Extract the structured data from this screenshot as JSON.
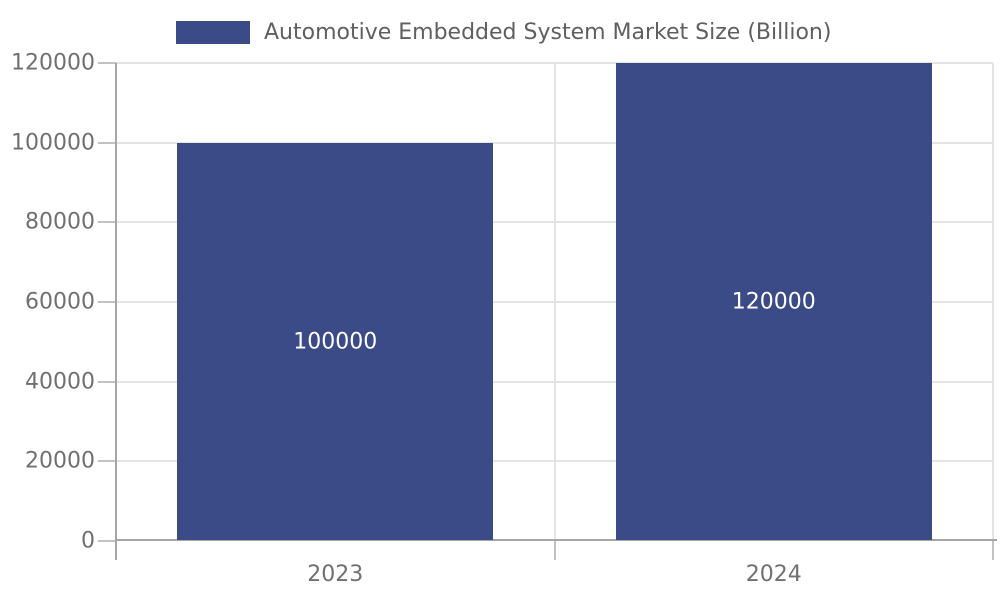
{
  "legend": {
    "label": "Automotive Embedded System Market Size (Billion)"
  },
  "chart_data": {
    "type": "bar",
    "title": "Automotive Embedded System Market Size (Billion)",
    "categories": [
      "2023",
      "2024"
    ],
    "values": [
      100000,
      120000
    ],
    "value_labels": [
      "100000",
      "120000"
    ],
    "xlabel": "",
    "ylabel": "",
    "ylim": [
      0,
      120000
    ],
    "ytick_interval": 20000,
    "yticks": [
      "0",
      "20000",
      "40000",
      "60000",
      "80000",
      "100000",
      "120000"
    ],
    "grid": true,
    "legend_position": "top",
    "colors": {
      "bar": "#3b4b87",
      "value_label": "#ffffff",
      "grid_line": "#e4e4e4",
      "axis_line": "#a6a6a6",
      "tick_mark": "#c2c2c2",
      "tick_label": "#707070",
      "legend_text": "#5f5f5f"
    }
  }
}
